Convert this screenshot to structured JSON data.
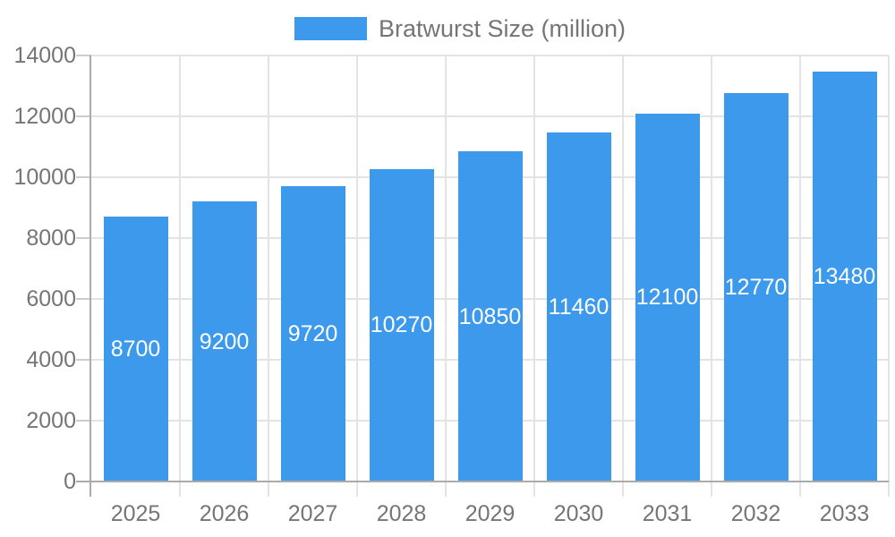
{
  "chart_data": {
    "type": "bar",
    "title": "",
    "legend": {
      "label": "Bratwurst Size (million)",
      "position": "top"
    },
    "categories": [
      "2025",
      "2026",
      "2027",
      "2028",
      "2029",
      "2030",
      "2031",
      "2032",
      "2033"
    ],
    "series": [
      {
        "name": "Bratwurst Size (million)",
        "values": [
          8700,
          9200,
          9720,
          10270,
          10850,
          11460,
          12100,
          12770,
          13480
        ]
      }
    ],
    "bar_value_labels": [
      "8700",
      "9200",
      "9720",
      "10270",
      "10850",
      "11460",
      "12100",
      "12770",
      "13480"
    ],
    "xlabel": "",
    "ylabel": "",
    "ylim": [
      0,
      14000
    ],
    "ytick_interval": 2000,
    "ytick_labels": [
      "0",
      "2000",
      "4000",
      "6000",
      "8000",
      "10000",
      "12000",
      "14000"
    ],
    "grid": "horizontal-and-vertical",
    "bar_label_placement": "inside-center"
  },
  "colors": {
    "bar": "#3C99EC",
    "gridline": "#E3E3E3",
    "tick": "#CCCCCC",
    "axis_line": "#ABABAB",
    "text": "#757575",
    "bar_label": "#FFFFFF",
    "background": "#FFFFFF"
  }
}
